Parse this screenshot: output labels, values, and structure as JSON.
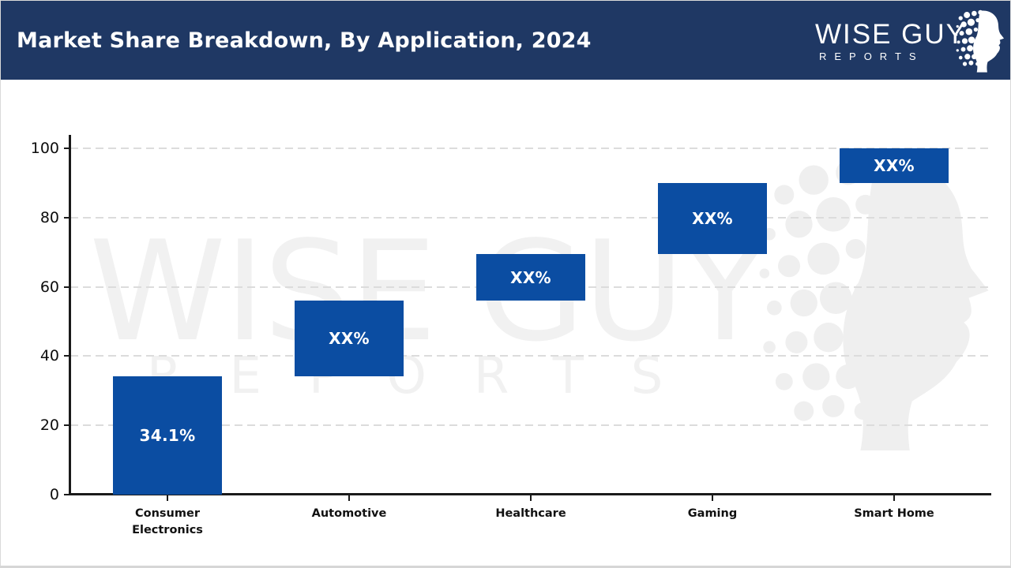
{
  "header": {
    "title": "Market Share Breakdown, By Application, 2024",
    "logo": {
      "line1": "WISE GUY",
      "line2": "REPORTS",
      "icon": "dotted-head-profile"
    }
  },
  "watermark": {
    "line1": "WISE GUY",
    "line2": "REPORTS",
    "icon": "dotted-head-profile"
  },
  "colors": {
    "header_bg": "#1f3864",
    "bar": "#0b4da2",
    "bar_label": "#ffffff",
    "axis": "#1a1a1a",
    "grid": "#dcdcdc",
    "watermark": "#f1f1f1"
  },
  "chart_data": {
    "type": "bar",
    "subtype": "waterfall",
    "title": "Market Share Breakdown, By Application, 2024",
    "categories": [
      "Consumer Electronics",
      "Automotive",
      "Healthcare",
      "Gaming",
      "Smart Home"
    ],
    "segments": [
      {
        "category": "Consumer Electronics",
        "start": 0,
        "end": 34.1,
        "label": "34.1%"
      },
      {
        "category": "Automotive",
        "start": 34.1,
        "end": 56,
        "label": "XX%"
      },
      {
        "category": "Healthcare",
        "start": 56,
        "end": 69.5,
        "label": "XX%"
      },
      {
        "category": "Gaming",
        "start": 69.5,
        "end": 90,
        "label": "XX%"
      },
      {
        "category": "Smart Home",
        "start": 90,
        "end": 100,
        "label": "XX%"
      }
    ],
    "y_ticks": [
      0,
      20,
      40,
      60,
      80,
      100
    ],
    "ylim": [
      0,
      103.8
    ],
    "xlabel": "",
    "ylabel": "",
    "grid": "horizontal-dashed",
    "legend": "none"
  }
}
